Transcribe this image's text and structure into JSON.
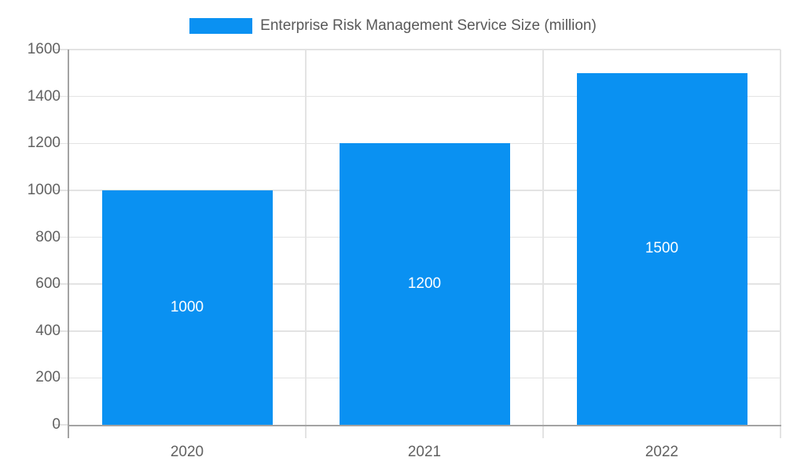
{
  "chart_data": {
    "type": "bar",
    "title": "Enterprise Risk Management Service Size (million)",
    "categories": [
      "2020",
      "2021",
      "2022"
    ],
    "values": [
      1000,
      1200,
      1500
    ],
    "xlabel": "",
    "ylabel": "",
    "ylim": [
      0,
      1600
    ],
    "yticks": [
      0,
      200,
      400,
      600,
      800,
      1000,
      1200,
      1400,
      1600
    ],
    "grid": true,
    "legend_position": "top-center",
    "legend_entries": [
      "Enterprise Risk Management Service Size (million)"
    ],
    "bar_labels": [
      "1000",
      "1200",
      "1500"
    ],
    "bar_labels_position": "inside-center",
    "colors": {
      "bar": "#0a91f2",
      "grid": "#e3e3e3",
      "axis": "#a3a3a3",
      "tick_text": "#616161",
      "title_text": "#595959",
      "bar_label_text": "#ffffff",
      "background": "#ffffff"
    }
  }
}
